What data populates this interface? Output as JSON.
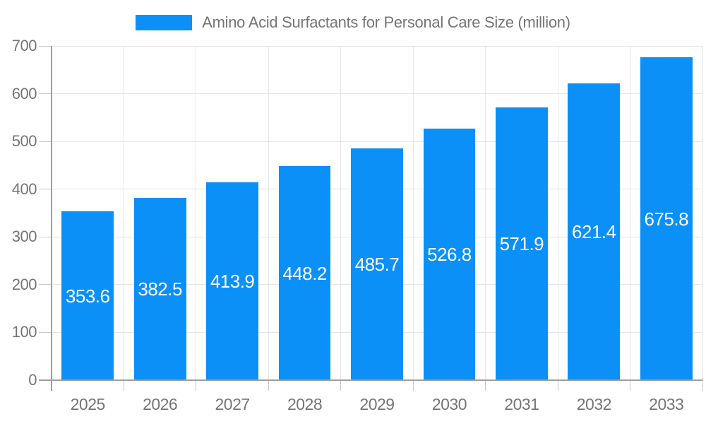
{
  "legend": {
    "label": "Amino Acid Surfactants for Personal Care Size (million)"
  },
  "colors": {
    "bar": "#0b90f8",
    "axis": "#9e9e9e",
    "tick": "#c8c8c8",
    "grid": "#e6e6e6",
    "axis_text": "#757575",
    "value_text": "#ffffff",
    "background": "#ffffff"
  },
  "chart_data": {
    "type": "bar",
    "title": "Amino Acid Surfactants for Personal Care Size (million)",
    "categories": [
      "2025",
      "2026",
      "2027",
      "2028",
      "2029",
      "2030",
      "2031",
      "2032",
      "2033"
    ],
    "values": [
      353.6,
      382.5,
      413.9,
      448.2,
      485.7,
      526.8,
      571.9,
      621.4,
      675.8
    ],
    "value_labels": [
      "353.6",
      "382.5",
      "413.9",
      "448.2",
      "485.7",
      "526.8",
      "571.9",
      "621.4",
      "675.8"
    ],
    "series_name": "Amino Acid Surfactants for Personal Care Size (million)",
    "xlabel": "",
    "ylabel": "",
    "ylim": [
      0,
      700
    ],
    "yticks": [
      0,
      100,
      200,
      300,
      400,
      500,
      600,
      700
    ],
    "grid": true,
    "legend_position": "top-center",
    "value_label_position": "inside-middle"
  }
}
